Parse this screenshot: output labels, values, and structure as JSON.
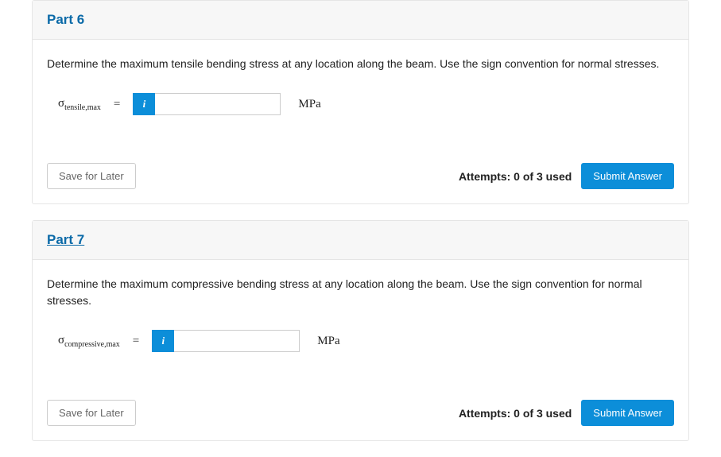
{
  "parts": [
    {
      "title": "Part 6",
      "title_underlined": false,
      "prompt": "Determine the maximum tensile bending stress at any location along the beam.  Use the sign convention for normal stresses.",
      "symbol_greek": "σ",
      "symbol_sub": "tensile,max",
      "equals": "=",
      "info_glyph": "i",
      "input_value": "",
      "unit": "MPa",
      "save_label": "Save for Later",
      "attempts_text": "Attempts: 0 of 3 used",
      "submit_label": "Submit Answer"
    },
    {
      "title": "Part 7",
      "title_underlined": true,
      "prompt": "Determine the maximum compressive bending stress at any location along the beam.  Use the sign convention for normal stresses.",
      "symbol_greek": "σ",
      "symbol_sub": "compressive,max",
      "equals": "=",
      "info_glyph": "i",
      "input_value": "",
      "unit": "MPa",
      "save_label": "Save for Later",
      "attempts_text": "Attempts: 0 of 3 used",
      "submit_label": "Submit Answer"
    }
  ],
  "colors": {
    "accent": "#0c8ed9",
    "title": "#0b6aa8",
    "header_bg": "#f7f7f7",
    "border": "#e5e5e5"
  }
}
